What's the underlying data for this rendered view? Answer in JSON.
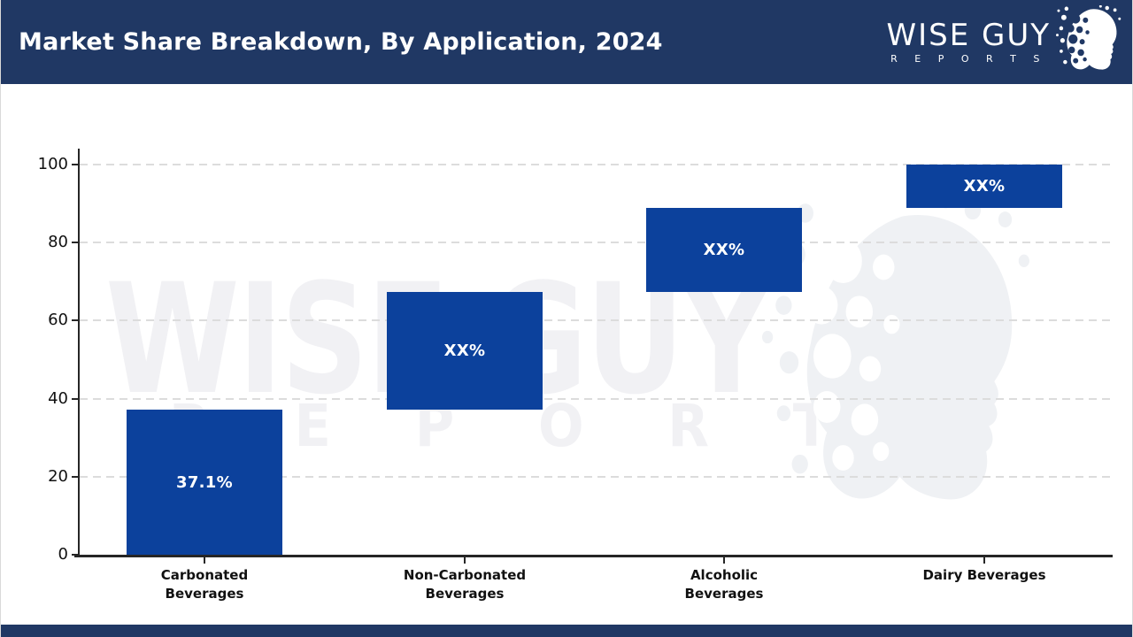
{
  "header": {
    "title": "Market Share Breakdown, By Application, 2024",
    "logo": {
      "brand_line1": "WISE GUY",
      "brand_line2": "R E P O R T S",
      "face_icon": "dotted-head-profile-icon"
    }
  },
  "watermark": {
    "line1": "WISE GUY",
    "line2": "R E P O R T S",
    "face_icon": "dotted-head-profile-icon"
  },
  "colors": {
    "header_bg": "#203864",
    "footer_bg": "#203864",
    "bar": "#0c419c",
    "bar_value_text": "#ffffff",
    "axis": "#262626",
    "grid": "#dcdcdc",
    "tick_text": "#111111",
    "watermark": "#f1f1f4"
  },
  "chart_data": {
    "type": "bar",
    "subtype": "waterfall",
    "title": "Market Share Breakdown, By Application, 2024",
    "xlabel": "",
    "ylabel": "",
    "ylim": [
      0,
      104
    ],
    "yticks": [
      0,
      20,
      40,
      60,
      80,
      100
    ],
    "grid": "horizontal-dashed",
    "legend": null,
    "categories": [
      "Carbonated Beverages",
      "Non-Carbonated Beverages",
      "Alcoholic Beverages",
      "Dairy Beverages"
    ],
    "category_lines": [
      [
        "Carbonated",
        "Beverages"
      ],
      [
        "Non-Carbonated",
        "Beverages"
      ],
      [
        "Alcoholic",
        "Beverages"
      ],
      [
        "Dairy Beverages"
      ]
    ],
    "bars": [
      {
        "category": "Carbonated Beverages",
        "start": 0,
        "end": 37.1,
        "label": "37.1%"
      },
      {
        "category": "Non-Carbonated Beverages",
        "start": 37.1,
        "end": 67.4,
        "label": "XX%"
      },
      {
        "category": "Alcoholic Beverages",
        "start": 67.4,
        "end": 88.9,
        "label": "XX%"
      },
      {
        "category": "Dairy Beverages",
        "start": 88.9,
        "end": 100,
        "label": "XX%"
      }
    ]
  }
}
